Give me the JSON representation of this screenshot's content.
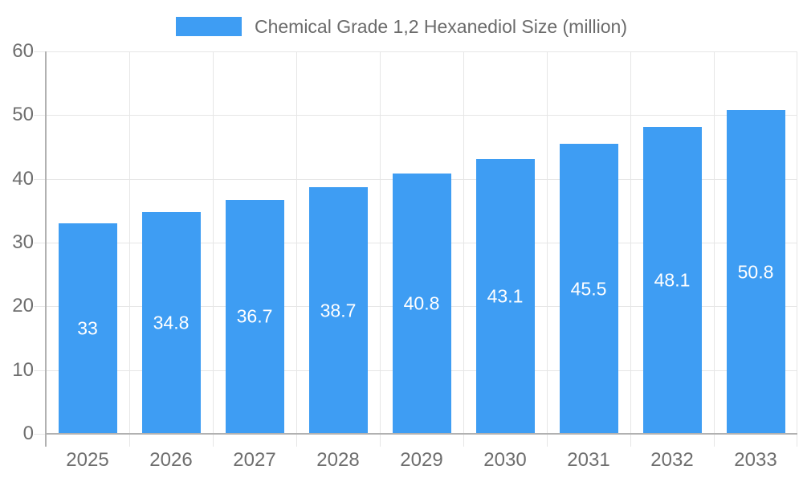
{
  "colors": {
    "bar": "#3E9DF3",
    "grid": "#E6E6E6",
    "axis": "#B1B1B1",
    "label_text": "#6E6E6E",
    "bar_label_text": "#FFFFFF"
  },
  "chart_data": {
    "type": "bar",
    "title": "Chemical Grade 1,2 Hexanediol Size (million)",
    "legend_position": "top",
    "categories": [
      "2025",
      "2026",
      "2027",
      "2028",
      "2029",
      "2030",
      "2031",
      "2032",
      "2033"
    ],
    "values": [
      33,
      34.8,
      36.7,
      38.7,
      40.8,
      43.1,
      45.5,
      48.1,
      50.8
    ],
    "value_labels": [
      "33",
      "34.8",
      "36.7",
      "38.7",
      "40.8",
      "43.1",
      "45.5",
      "48.1",
      "50.8"
    ],
    "xlabel": "",
    "ylabel": "",
    "ylim": [
      0,
      60
    ],
    "ytick_step": 10,
    "ytick_labels": [
      "0",
      "10",
      "20",
      "30",
      "40",
      "50",
      "60"
    ],
    "grid": true
  }
}
